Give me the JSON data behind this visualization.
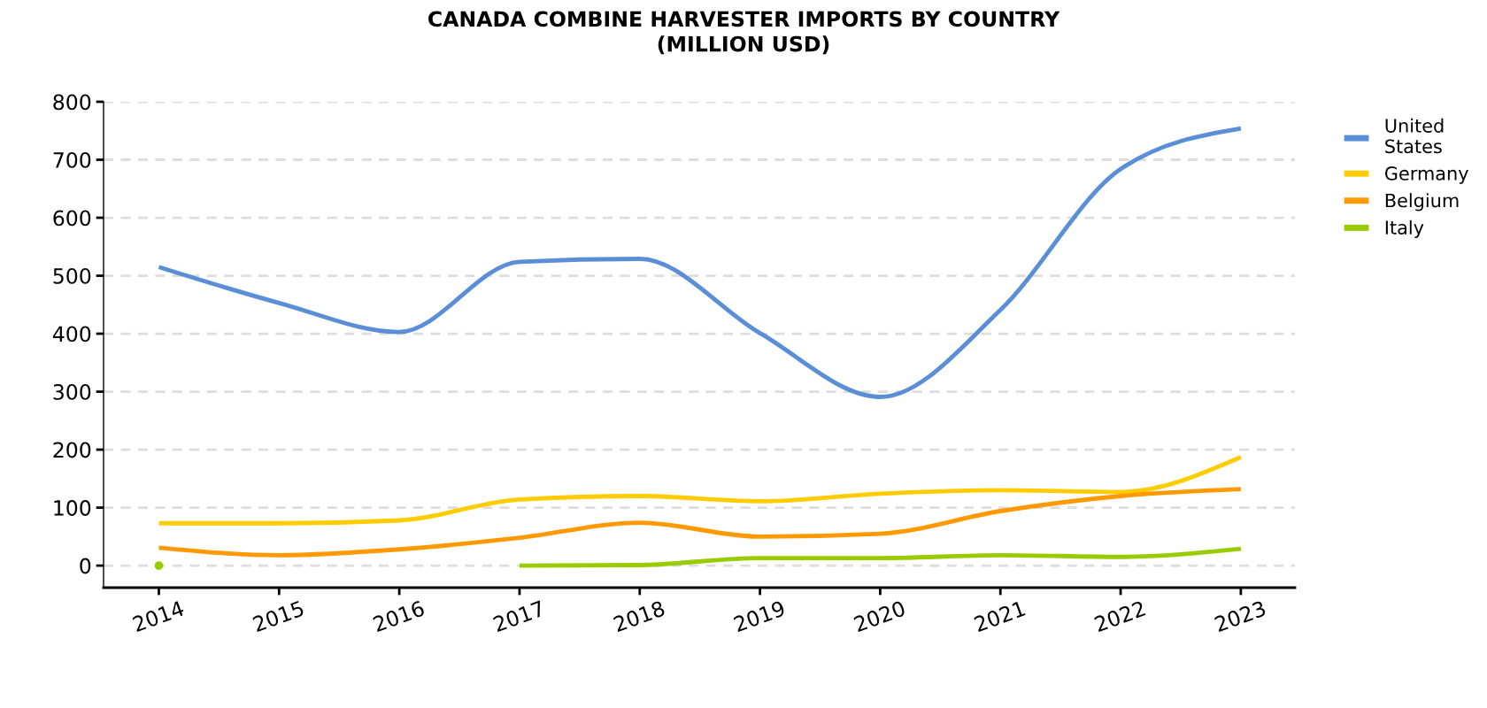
{
  "chart_data": {
    "type": "line",
    "title": "CANADA COMBINE HARVESTER IMPORTS BY COUNTRY\n(MILLION USD)",
    "categories": [
      "2014",
      "2015",
      "2016",
      "2017",
      "2018",
      "2019",
      "2020",
      "2021",
      "2022",
      "2023"
    ],
    "series": [
      {
        "name": "United States",
        "color": "#5a8fd8",
        "values": [
          515,
          453,
          403,
          524,
          529,
          401,
          291,
          441,
          684,
          754
        ]
      },
      {
        "name": "Germany",
        "color": "#ffcc00",
        "values": [
          73,
          73,
          78,
          114,
          120,
          111,
          124,
          130,
          127,
          187
        ]
      },
      {
        "name": "Belgium",
        "color": "#ff9900",
        "values": [
          31,
          18,
          28,
          48,
          74,
          50,
          55,
          94,
          120,
          132
        ]
      },
      {
        "name": "Italy",
        "color": "#99cc00",
        "values": [
          0,
          null,
          null,
          0,
          1,
          13,
          13,
          18,
          15,
          29
        ]
      }
    ],
    "ylim": [
      -38,
      800
    ],
    "yticks": [
      0,
      100,
      200,
      300,
      400,
      500,
      600,
      700,
      800
    ],
    "grid": "y",
    "legend": "top right",
    "line_style": "solid",
    "marker": "none"
  }
}
